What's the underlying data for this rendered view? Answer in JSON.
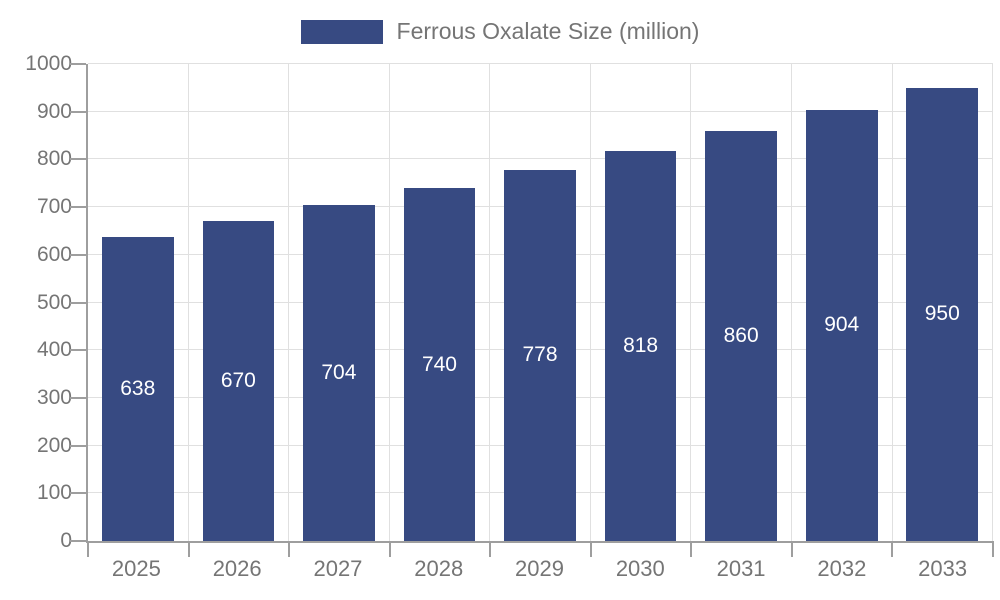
{
  "legend": {
    "label": "Ferrous Oxalate Size (million)"
  },
  "colors": {
    "bar": "#374a82",
    "bar_label": "#ffffff",
    "axis_text": "#757575",
    "axis_line": "#9e9e9e",
    "grid": "#e0e0e0",
    "background": "#ffffff"
  },
  "chart_data": {
    "type": "bar",
    "title": "Ferrous Oxalate Size (million)",
    "categories": [
      "2025",
      "2026",
      "2027",
      "2028",
      "2029",
      "2030",
      "2031",
      "2032",
      "2033"
    ],
    "values": [
      638,
      670,
      704,
      740,
      778,
      818,
      860,
      904,
      950
    ],
    "xlabel": "",
    "ylabel": "",
    "ylim": [
      0,
      1000
    ],
    "ytick_step": 100,
    "ytick_labels": [
      "0",
      "100",
      "200",
      "300",
      "400",
      "500",
      "600",
      "700",
      "800",
      "900",
      "1000"
    ],
    "grid": true,
    "legend_position": "top",
    "value_labels": "centered-white"
  }
}
